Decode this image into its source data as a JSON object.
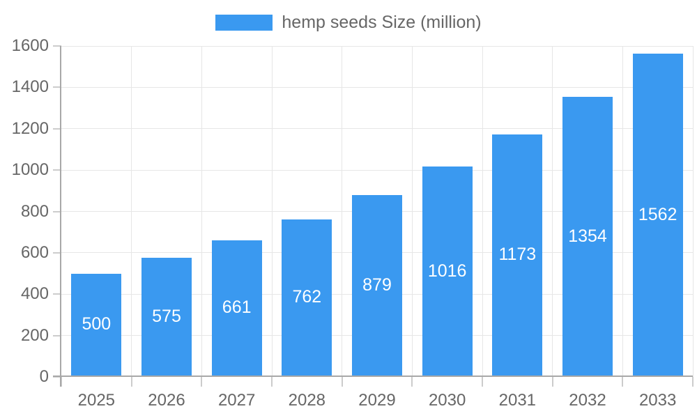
{
  "chart_data": {
    "type": "bar",
    "title": "",
    "legend": {
      "label": "hemp seeds Size (million)",
      "position": "top"
    },
    "categories": [
      "2025",
      "2026",
      "2027",
      "2028",
      "2029",
      "2030",
      "2031",
      "2032",
      "2033"
    ],
    "series": [
      {
        "name": "hemp seeds Size (million)",
        "values": [
          500,
          575,
          661,
          762,
          879,
          1016,
          1173,
          1354,
          1562
        ]
      }
    ],
    "value_labels": [
      "500",
      "575",
      "661",
      "762",
      "879",
      "1016",
      "1173",
      "1354",
      "1562"
    ],
    "xlabel": "",
    "ylabel": "",
    "ylim": [
      0,
      1600
    ],
    "ytick_step": 200,
    "yticks": [
      0,
      200,
      400,
      600,
      800,
      1000,
      1200,
      1400,
      1600
    ],
    "grid": true,
    "legend_position": "top",
    "colors": {
      "bar": "#3a99f0",
      "bar_value_text": "#ffffff",
      "axis_text": "#666666",
      "legend_text": "#666666",
      "gridline": "#e6e6e6",
      "axis_line": "#a8a8a8",
      "tick": "#cccccc",
      "background": "#ffffff"
    }
  }
}
